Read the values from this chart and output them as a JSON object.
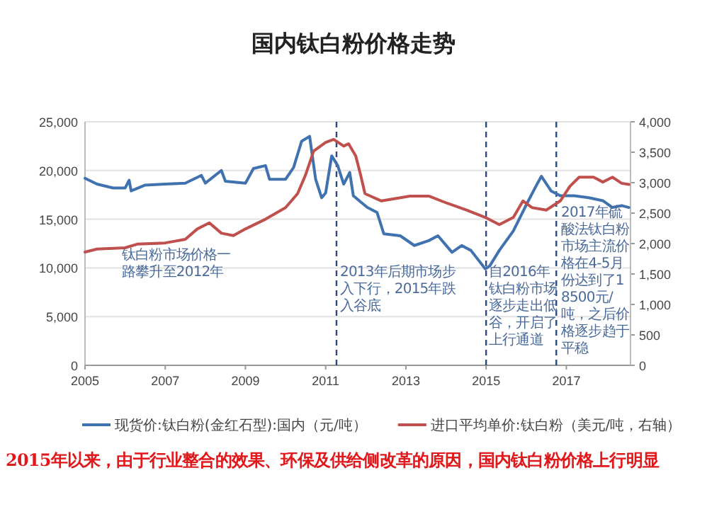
{
  "chart_data": {
    "type": "line",
    "title": "国内钛白粉价格走势",
    "xlim": [
      2005,
      2018.6
    ],
    "xticks": [
      2005,
      2007,
      2009,
      2011,
      2013,
      2015,
      2017
    ],
    "ylim": [
      0,
      25000
    ],
    "yticks": [
      {
        "value": 0,
        "label": "0"
      },
      {
        "value": 5000,
        "label": "5,000"
      },
      {
        "value": 10000,
        "label": "10,000"
      },
      {
        "value": 15000,
        "label": "15,000"
      },
      {
        "value": 20000,
        "label": "20,000"
      },
      {
        "value": 25000,
        "label": "25,000"
      }
    ],
    "y2lim": [
      0,
      4000
    ],
    "y2ticks": [
      {
        "value": 0,
        "label": "0"
      },
      {
        "value": 500,
        "label": "500"
      },
      {
        "value": 1000,
        "label": "1,000"
      },
      {
        "value": 1500,
        "label": "1,500"
      },
      {
        "value": 2000,
        "label": "2,000"
      },
      {
        "value": 2500,
        "label": "2,500"
      },
      {
        "value": 3000,
        "label": "3,000"
      },
      {
        "value": 3500,
        "label": "3,500"
      },
      {
        "value": 4000,
        "label": "4,000"
      }
    ],
    "grid": "y",
    "legend": "bottom",
    "series": [
      {
        "name": "现货价:钛白粉(金红石型):国内（元/吨）",
        "color": "#3f72af",
        "axis": "y",
        "x": [
          2005.0,
          2005.3,
          2005.7,
          2006.0,
          2006.1,
          2006.15,
          2006.5,
          2007.0,
          2007.5,
          2007.9,
          2008.0,
          2008.4,
          2008.5,
          2009.0,
          2009.2,
          2009.5,
          2009.6,
          2009.9,
          2010.0,
          2010.2,
          2010.4,
          2010.6,
          2010.75,
          2010.9,
          2011.0,
          2011.15,
          2011.3,
          2011.45,
          2011.6,
          2011.69,
          2012.04,
          2012.28,
          2012.45,
          2012.86,
          2013.21,
          2013.57,
          2013.8,
          2014.15,
          2014.39,
          2014.62,
          2014.98,
          2015.09,
          2015.33,
          2015.68,
          2016.03,
          2016.27,
          2016.38,
          2016.62,
          2016.85,
          2017.2,
          2017.56,
          2017.91,
          2018.15,
          2018.38,
          2018.56
        ],
        "values": [
          19200,
          18600,
          18200,
          18200,
          19000,
          17900,
          18500,
          18600,
          18700,
          19500,
          18700,
          20000,
          18900,
          18700,
          20200,
          20500,
          19100,
          19100,
          19100,
          20300,
          23000,
          23500,
          19100,
          17200,
          17700,
          21500,
          20500,
          18600,
          19800,
          17400,
          16200,
          15700,
          13500,
          13300,
          12300,
          12800,
          13300,
          11600,
          12300,
          11800,
          9900,
          10200,
          11800,
          13800,
          16700,
          18600,
          19400,
          17900,
          17400,
          17400,
          17200,
          16900,
          16200,
          16400,
          16200
        ]
      },
      {
        "name": "进口平均单价:钛白粉（美元/吨，右轴）",
        "color": "#c0504d",
        "axis": "y2",
        "x": [
          2005.0,
          2005.3,
          2006.0,
          2006.3,
          2007.0,
          2007.5,
          2007.8,
          2008.1,
          2008.4,
          2008.7,
          2009.0,
          2009.5,
          2010.0,
          2010.3,
          2010.5,
          2010.7,
          2011.0,
          2011.2,
          2011.45,
          2011.57,
          2011.75,
          2011.87,
          2011.98,
          2012.39,
          2013.1,
          2013.57,
          2014.04,
          2014.51,
          2014.98,
          2015.33,
          2015.68,
          2015.92,
          2016.15,
          2016.5,
          2016.85,
          2017.09,
          2017.32,
          2017.68,
          2017.91,
          2018.15,
          2018.38,
          2018.56
        ],
        "values": [
          1860,
          1910,
          1930,
          1990,
          2010,
          2070,
          2240,
          2340,
          2170,
          2130,
          2240,
          2400,
          2590,
          2820,
          3130,
          3520,
          3660,
          3710,
          3600,
          3640,
          3440,
          3130,
          2820,
          2700,
          2780,
          2780,
          2660,
          2550,
          2430,
          2310,
          2430,
          2700,
          2590,
          2550,
          2700,
          2940,
          3090,
          3090,
          3010,
          3090,
          2990,
          2970
        ]
      }
    ],
    "ref_lines": [
      {
        "axis": "x",
        "value": 2011.27,
        "color": "#2e4a7a",
        "line_style": "dashed"
      },
      {
        "axis": "x",
        "value": 2015.0,
        "color": "#2e4a7a",
        "line_style": "dashed"
      },
      {
        "axis": "x",
        "value": 2016.75,
        "color": "#2e4a7a",
        "line_style": "dashed"
      }
    ],
    "annotations": [
      "钛白粉市场价格一路攀升至2012年",
      "2013年后期市场步入下行，2015年跌入谷底",
      "自2016年钛白粉市场逐步走出低谷，开启了上行通道",
      "2017年硫酸法钛白粉市场主流价格在4-5月份达到了18500元/吨，之后价格逐步趋于平稳",
      "2015年以来，由于行业整合的效果、环保及供给侧改革的原因，国内钛白粉价格上行明显"
    ]
  }
}
